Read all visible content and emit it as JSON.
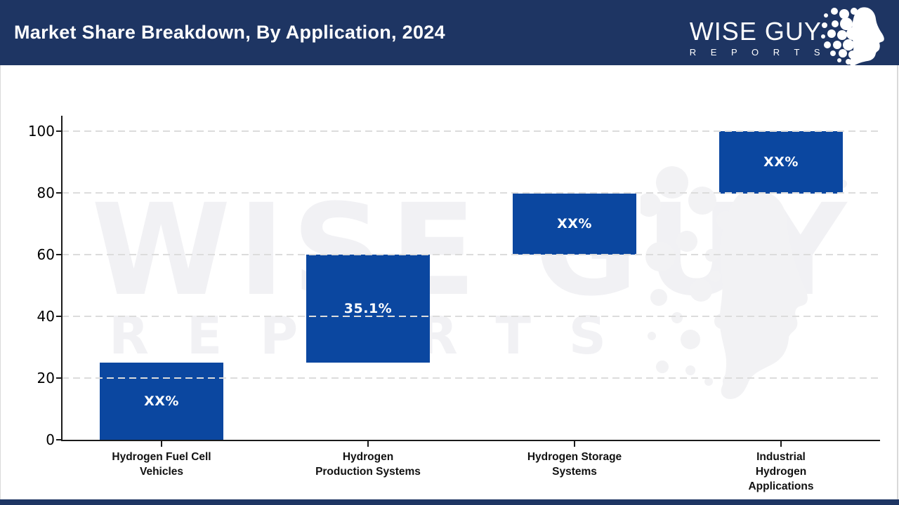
{
  "header": {
    "title": "Market Share Breakdown, By Application, 2024",
    "logo_line1": "WISE GUY",
    "logo_line2": "R E P O R T S"
  },
  "watermark": {
    "line1": "WISE GUY",
    "line2": "R E P O R T S"
  },
  "colors": {
    "header_bg": "#1e3563",
    "footer_bg": "#1e3563",
    "bar": "#0b47a0",
    "watermark": "#f1f1f4",
    "gridline": "#dcdcdc"
  },
  "chart_data": {
    "type": "bar",
    "subtype": "waterfall",
    "title": "Market Share Breakdown, By Application, 2024",
    "categories": [
      [
        "Hydrogen Fuel Cell",
        "Vehicles"
      ],
      [
        "Hydrogen",
        "Production Systems"
      ],
      [
        "Hydrogen Storage",
        "Systems"
      ],
      [
        "Industrial",
        "Hydrogen",
        "Applications"
      ]
    ],
    "segments": [
      {
        "name": "Hydrogen Fuel Cell Vehicles",
        "start": 0,
        "end": 25.0,
        "value": 25.0,
        "value_label": "XX%"
      },
      {
        "name": "Hydrogen Production Systems",
        "start": 25.0,
        "end": 60.1,
        "value": 35.1,
        "value_label": "35.1%"
      },
      {
        "name": "Hydrogen Storage Systems",
        "start": 60.1,
        "end": 79.8,
        "value": 19.7,
        "value_label": "XX%"
      },
      {
        "name": "Industrial Hydrogen Applications",
        "start": 79.8,
        "end": 100.0,
        "value": 20.2,
        "value_label": "XX%"
      }
    ],
    "yticks": [
      0,
      20,
      40,
      60,
      80,
      100
    ],
    "ylim": [
      0,
      105
    ],
    "xlabel": "",
    "ylabel": "",
    "grid": "horizontal-dashed",
    "legend": "none",
    "bar_color": "#0b47a0"
  }
}
